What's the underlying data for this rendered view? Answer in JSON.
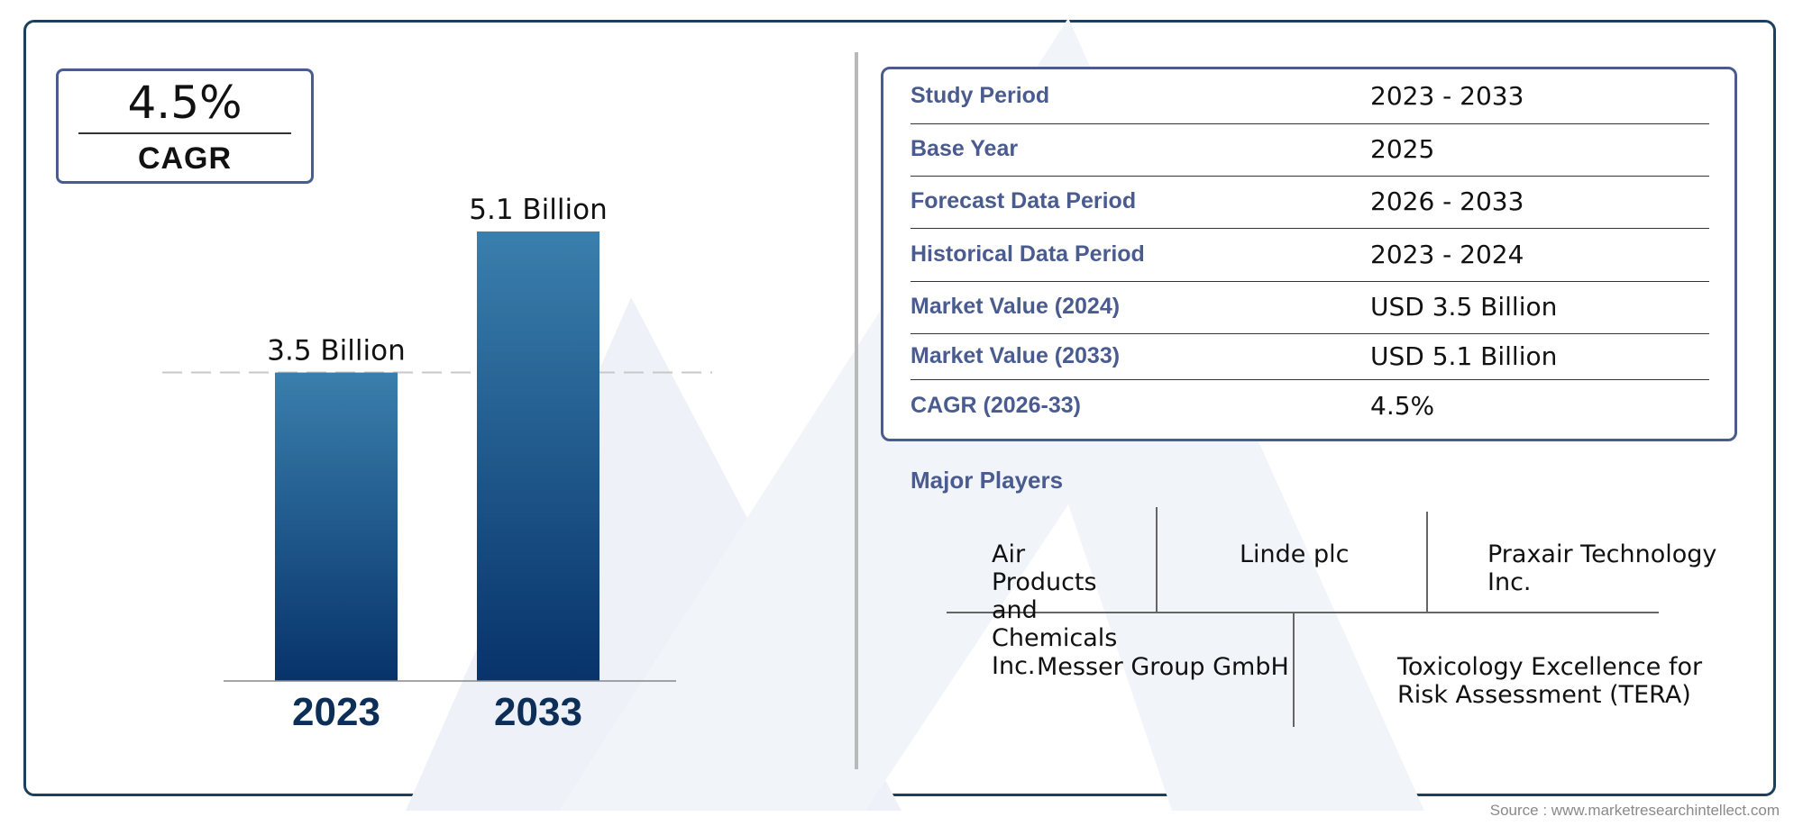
{
  "cagr_badge": {
    "value": "4.5%",
    "label": "CAGR"
  },
  "chart_data": {
    "type": "bar",
    "categories": [
      "2023",
      "2033"
    ],
    "values": [
      3.5,
      5.1
    ],
    "data_labels": [
      "3.5 Billion",
      "5.1 Billion"
    ],
    "unit": "Billion",
    "title": "",
    "xlabel": "",
    "ylabel": "",
    "ylim": [
      0,
      5.1
    ],
    "grid": false,
    "reference_line": {
      "value": 3.5,
      "style": "dashed"
    },
    "colors": {
      "bar_top": "#3a7fad",
      "bar_bottom": "#07336a",
      "year_label": "#0d2f57"
    }
  },
  "summary": {
    "rows": [
      {
        "key": "Study Period",
        "value": "2023 - 2033"
      },
      {
        "key": "Base Year",
        "value": "2025"
      },
      {
        "key": "Forecast Data Period",
        "value": "2026 - 2033"
      },
      {
        "key": "Historical Data Period",
        "value": "2023 - 2024"
      },
      {
        "key": "Market Value (2024)",
        "value": "USD 3.5 Billion"
      },
      {
        "key": "Market Value (2033)",
        "value": "USD 5.1 Billion"
      },
      {
        "key": "CAGR (2026-33)",
        "value": "4.5%"
      }
    ]
  },
  "players": {
    "title": "Major Players",
    "items": [
      "Air Products and Chemicals Inc.",
      "Linde plc",
      "Praxair Technology Inc.",
      "Messer Group GmbH",
      "Toxicology Excellence for Risk Assessment (TERA)"
    ]
  },
  "source": "Source : www.marketresearchintellect.com",
  "colors": {
    "accent": "#4a5c8f",
    "frame": "#1c3f5e"
  }
}
